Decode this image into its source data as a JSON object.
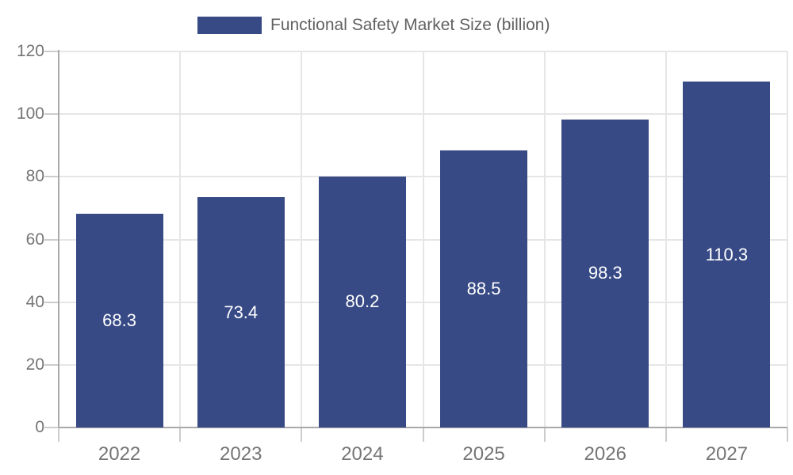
{
  "chart_data": {
    "type": "bar",
    "series_name": "Functional Safety Market Size (billion)",
    "categories": [
      "2022",
      "2023",
      "2024",
      "2025",
      "2026",
      "2027"
    ],
    "values": [
      68.3,
      73.4,
      80.2,
      88.5,
      98.3,
      110.3
    ],
    "value_labels": [
      "68.3",
      "73.4",
      "80.2",
      "88.5",
      "98.3",
      "110.3"
    ],
    "title": "",
    "xlabel": "",
    "ylabel": "",
    "ylim": [
      0,
      120
    ],
    "yticks": [
      0,
      20,
      40,
      60,
      80,
      100,
      120
    ],
    "grid": true,
    "legend_position": "top-center",
    "colors": {
      "bar": "#374a85",
      "value_label": "#ffffff",
      "axis_label": "#757575",
      "legend_text": "#616161",
      "grid": "#e6e6e6",
      "axis_line": "#a9a9a9",
      "tick": "#cccccc",
      "background": "#ffffff"
    }
  }
}
